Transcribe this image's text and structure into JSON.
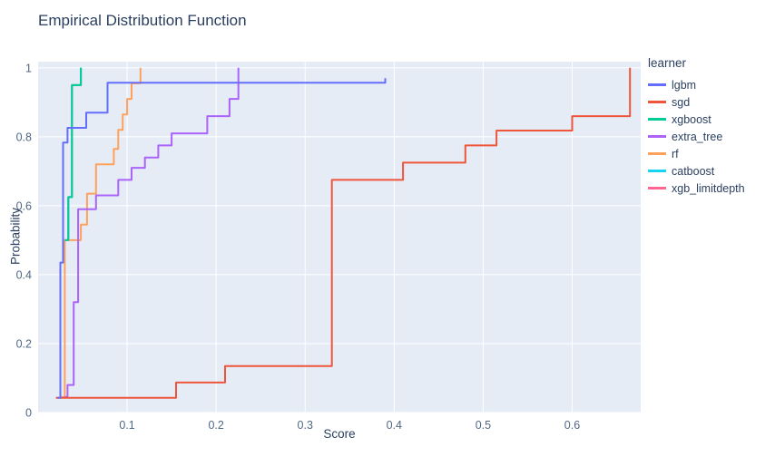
{
  "chart_data": {
    "type": "line",
    "line_shape": "hv-step",
    "title": "Empirical Distribution Function",
    "xlabel": "Score",
    "ylabel": "Probability",
    "legend_title": "learner",
    "legend_position": "right",
    "grid": true,
    "xlim": [
      0,
      0.677
    ],
    "ylim": [
      0,
      1.018
    ],
    "x_ticks": [
      0.1,
      0.2,
      0.3,
      0.4,
      0.5,
      0.6
    ],
    "x_tick_labels": [
      "0.1",
      "0.2",
      "0.3",
      "0.4",
      "0.5",
      "0.6"
    ],
    "y_ticks": [
      0,
      0.2,
      0.4,
      0.6,
      0.8,
      1
    ],
    "y_tick_labels": [
      "0",
      "0.2",
      "0.4",
      "0.6",
      "0.8",
      "1"
    ],
    "colors": {
      "plot_bg": "#E5ECF6",
      "grid": "#ffffff",
      "title": "#2a3f5f",
      "tick": "#506784"
    },
    "overlap_note": "catboost and xgb_limitdepth curves are overlapped by the xgboost curve at the far left of the plot",
    "series": [
      {
        "name": "lgbm",
        "color": "#636EFA",
        "points": [
          [
            0.022,
            0.043
          ],
          [
            0.025,
            0.435
          ],
          [
            0.028,
            0.783
          ],
          [
            0.033,
            0.826
          ],
          [
            0.054,
            0.87
          ],
          [
            0.078,
            0.957
          ],
          [
            0.39,
            0.97
          ]
        ]
      },
      {
        "name": "sgd",
        "color": "#EF553B",
        "points": [
          [
            0.02,
            0.043
          ],
          [
            0.155,
            0.087
          ],
          [
            0.21,
            0.135
          ],
          [
            0.33,
            0.675
          ],
          [
            0.41,
            0.725
          ],
          [
            0.48,
            0.775
          ],
          [
            0.515,
            0.818
          ],
          [
            0.6,
            0.86
          ],
          [
            0.665,
            1.0
          ]
        ]
      },
      {
        "name": "xgboost",
        "color": "#00CC96",
        "points": [
          [
            0.03,
            0.5
          ],
          [
            0.034,
            0.625
          ],
          [
            0.038,
            0.95
          ],
          [
            0.048,
            1.0
          ]
        ]
      },
      {
        "name": "extra_tree",
        "color": "#AB63FA",
        "points": [
          [
            0.03,
            0.045
          ],
          [
            0.033,
            0.08
          ],
          [
            0.04,
            0.32
          ],
          [
            0.045,
            0.59
          ],
          [
            0.065,
            0.63
          ],
          [
            0.09,
            0.675
          ],
          [
            0.105,
            0.71
          ],
          [
            0.12,
            0.74
          ],
          [
            0.135,
            0.775
          ],
          [
            0.15,
            0.81
          ],
          [
            0.19,
            0.86
          ],
          [
            0.215,
            0.91
          ],
          [
            0.225,
            1.0
          ]
        ]
      },
      {
        "name": "rf",
        "color": "#FFA15A",
        "points": [
          [
            0.025,
            0.045
          ],
          [
            0.03,
            0.5
          ],
          [
            0.048,
            0.545
          ],
          [
            0.055,
            0.635
          ],
          [
            0.065,
            0.72
          ],
          [
            0.085,
            0.765
          ],
          [
            0.09,
            0.82
          ],
          [
            0.095,
            0.865
          ],
          [
            0.1,
            0.91
          ],
          [
            0.105,
            0.955
          ],
          [
            0.115,
            1.0
          ]
        ]
      },
      {
        "name": "catboost",
        "color": "#19D3F3",
        "points": [
          [
            0.03,
            0.5
          ],
          [
            0.034,
            0.625
          ],
          [
            0.038,
            0.95
          ],
          [
            0.048,
            1.0
          ]
        ]
      },
      {
        "name": "xgb_limitdepth",
        "color": "#FF6692",
        "points": [
          [
            0.03,
            0.5
          ],
          [
            0.034,
            0.625
          ],
          [
            0.038,
            0.95
          ],
          [
            0.048,
            1.0
          ]
        ]
      }
    ]
  }
}
